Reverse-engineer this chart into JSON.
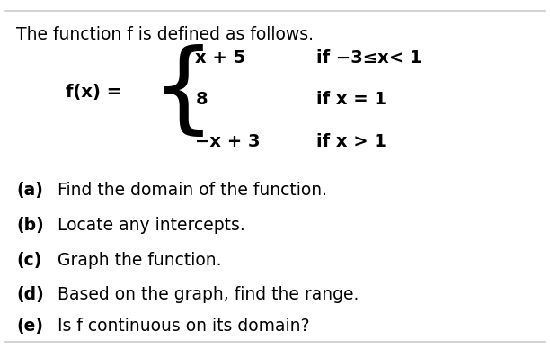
{
  "title": "The function f is defined as follows.",
  "title_fontsize": 13.5,
  "title_color": "#000000",
  "background_color": "#f0f0f0",
  "content_bg": "#ffffff",
  "fx_label": "f(x) =",
  "piece1_expr": "x + 5",
  "piece1_cond": "if −3≤x< 1",
  "piece2_expr": "8",
  "piece2_cond": "if x = 1",
  "piece3_expr": "−x + 3",
  "piece3_cond": "if x > 1",
  "q_a": "(a)",
  "q_a_text": " Find the domain of the function.",
  "q_b": "(b)",
  "q_b_text": " Locate any intercepts.",
  "q_c": "(c)",
  "q_c_text": " Graph the function.",
  "q_d": "(d)",
  "q_d_text": " Based on the graph, find the range.",
  "q_e": "(e)",
  "q_e_text": " Is f continuous on its domain?",
  "bold_fontsize": 13.5,
  "expr_fontsize": 14,
  "brace_fontsize": 80,
  "border_color": "#cccccc"
}
